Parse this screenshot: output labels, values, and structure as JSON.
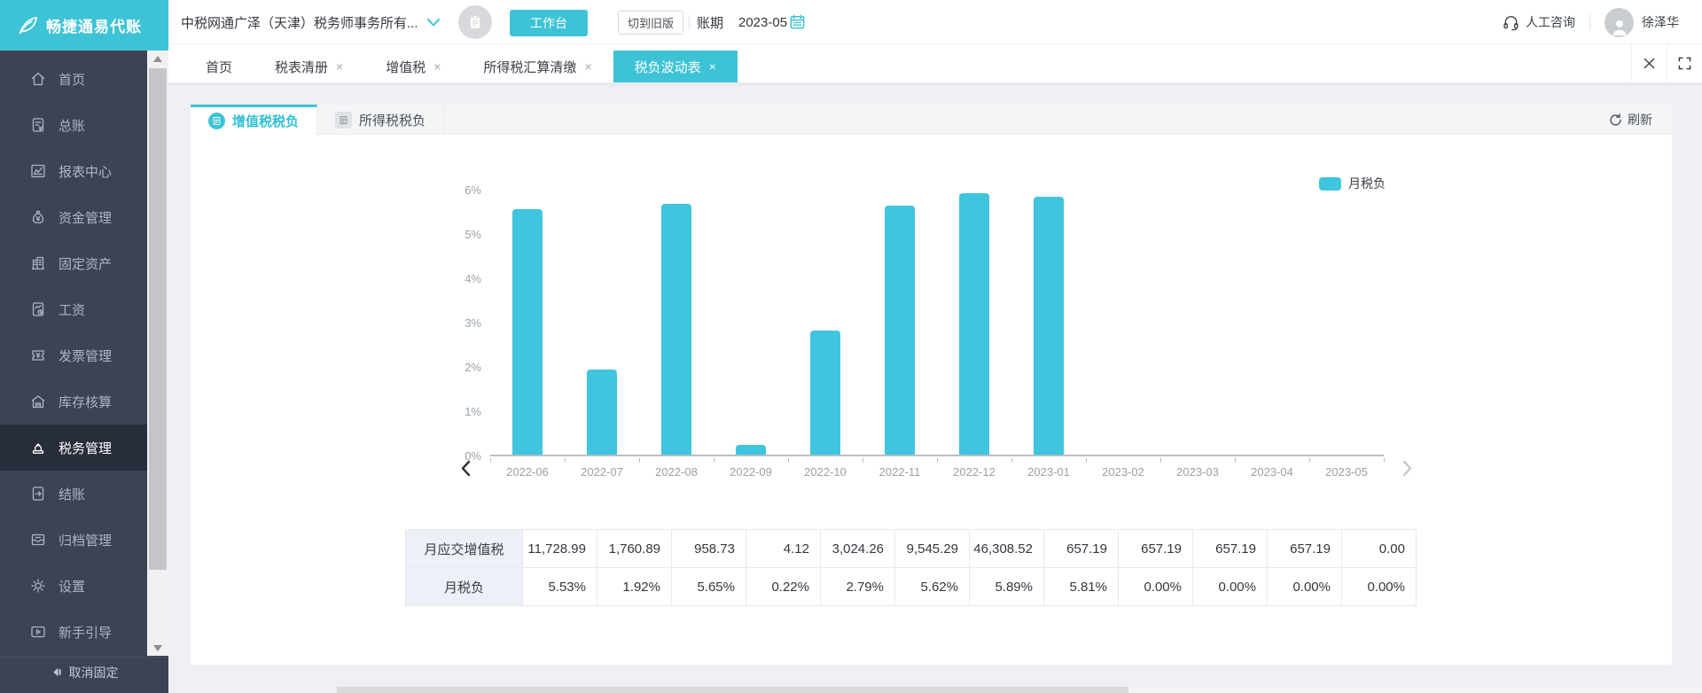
{
  "colors": {
    "accent": "#3EC3D6",
    "bar": "#3FC5DE",
    "sidebar_bg": "#3D4354",
    "sidebar_active_bg": "#282D3B"
  },
  "brand": {
    "name": "畅捷通易代账"
  },
  "header": {
    "company": "中税网通广泽（天津）税务师事务所有...",
    "workbench": "工作台",
    "switch_old": "切到旧版",
    "period_label": "账期",
    "period_value": "2023-05",
    "support": "人工咨询",
    "username": "徐泽华"
  },
  "tabbar": {
    "close_glyph": "×",
    "tabs": [
      {
        "key": "home",
        "label": "首页",
        "closable": false,
        "active": false
      },
      {
        "key": "tax-form-list",
        "label": "税表清册",
        "closable": true,
        "active": false
      },
      {
        "key": "vat",
        "label": "增值税",
        "closable": true,
        "active": false
      },
      {
        "key": "income-tax-settlement",
        "label": "所得税汇算清缴",
        "closable": true,
        "active": false
      },
      {
        "key": "tax-fluctuation",
        "label": "税负波动表",
        "closable": true,
        "active": true
      }
    ]
  },
  "sidebar": {
    "items": [
      {
        "key": "home",
        "label": "首页",
        "icon": "home-icon",
        "active": false
      },
      {
        "key": "general-ledger",
        "label": "总账",
        "icon": "ledger-icon",
        "active": false
      },
      {
        "key": "report-center",
        "label": "报表中心",
        "icon": "report-center-icon",
        "active": false
      },
      {
        "key": "funds",
        "label": "资金管理",
        "icon": "funds-icon",
        "active": false
      },
      {
        "key": "fixed-assets",
        "label": "固定资产",
        "icon": "fixed-assets-icon",
        "active": false
      },
      {
        "key": "payroll",
        "label": "工资",
        "icon": "payroll-icon",
        "active": false
      },
      {
        "key": "invoice",
        "label": "发票管理",
        "icon": "invoice-icon",
        "active": false
      },
      {
        "key": "inventory",
        "label": "库存核算",
        "icon": "inventory-icon",
        "active": false
      },
      {
        "key": "tax",
        "label": "税务管理",
        "icon": "tax-icon",
        "active": true
      },
      {
        "key": "closing",
        "label": "结账",
        "icon": "closing-icon",
        "active": false
      },
      {
        "key": "archive",
        "label": "归档管理",
        "icon": "archive-icon",
        "active": false
      },
      {
        "key": "settings",
        "label": "设置",
        "icon": "settings-icon",
        "active": false
      },
      {
        "key": "guide",
        "label": "新手引导",
        "icon": "guide-icon",
        "active": false
      }
    ],
    "unpin_label": "取消固定"
  },
  "panel": {
    "subtabs": [
      {
        "key": "vat-burden",
        "label": "增值税税负",
        "active": true
      },
      {
        "key": "income-tax-burden",
        "label": "所得税税负",
        "active": false
      }
    ],
    "refresh_label": "刷新"
  },
  "chart_data": {
    "type": "bar",
    "title": "",
    "legend": [
      "月税负"
    ],
    "legend_position": "top-right",
    "categories": [
      "2022-06",
      "2022-07",
      "2022-08",
      "2022-09",
      "2022-10",
      "2022-11",
      "2022-12",
      "2023-01",
      "2023-02",
      "2023-03",
      "2023-04",
      "2023-05"
    ],
    "series": [
      {
        "name": "月税负",
        "unit": "%",
        "values": [
          5.53,
          1.92,
          5.65,
          0.22,
          2.79,
          5.62,
          5.89,
          5.81,
          0,
          0,
          0,
          0
        ]
      }
    ],
    "ylim": [
      0,
      6
    ],
    "ytick_labels": [
      "0%",
      "1%",
      "2%",
      "3%",
      "4%",
      "5%",
      "6%"
    ],
    "grid": false,
    "bar_color": "#3FC5DE"
  },
  "table": {
    "rows": [
      {
        "header": "月应交增值税",
        "values": [
          "11,728.99",
          "1,760.89",
          "958.73",
          "4.12",
          "3,024.26",
          "9,545.29",
          "46,308.52",
          "657.19",
          "657.19",
          "657.19",
          "657.19",
          "0.00"
        ]
      },
      {
        "header": "月税负",
        "values": [
          "5.53%",
          "1.92%",
          "5.65%",
          "0.22%",
          "2.79%",
          "5.62%",
          "5.89%",
          "5.81%",
          "0.00%",
          "0.00%",
          "0.00%",
          "0.00%"
        ]
      }
    ]
  }
}
